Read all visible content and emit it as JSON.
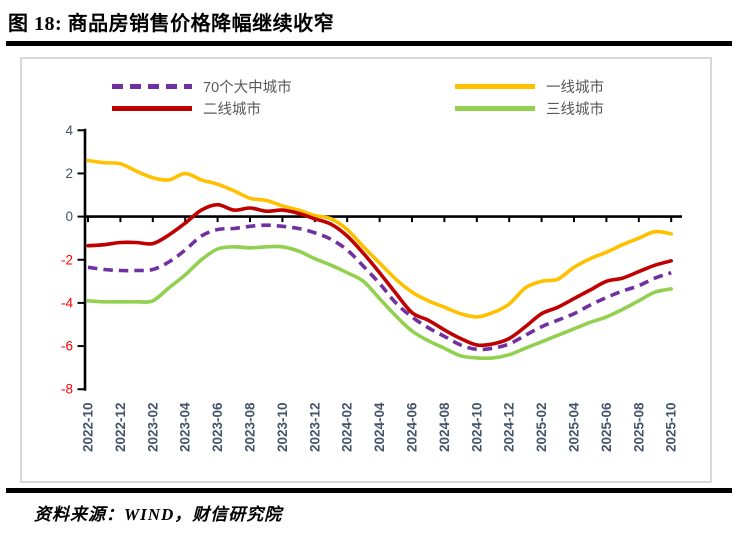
{
  "figure": {
    "number_title": "图 18: 商品房销售价格降幅继续收窄",
    "source": "资料来源：WIND，财信研究院"
  },
  "colors": {
    "panel_border": "#D9D9D9",
    "divider": "#000000",
    "legend_text": "#595959",
    "axis_label_positive": "#44546A",
    "axis_label_negative": "#FF0000",
    "axis_line": "#000000"
  },
  "chart_data": {
    "type": "line",
    "title": "商品房销售价格降幅继续收窄",
    "xlabel": "",
    "ylabel": "",
    "ylim": [
      -8,
      4
    ],
    "yticks": [
      4,
      2,
      0,
      -2,
      -4,
      -6,
      -8
    ],
    "grid": false,
    "legend_position": "top",
    "x": [
      "2022-10",
      "2022-11",
      "2022-12",
      "2023-01",
      "2023-02",
      "2023-03",
      "2023-04",
      "2023-05",
      "2023-06",
      "2023-07",
      "2023-08",
      "2023-09",
      "2023-10",
      "2023-11",
      "2023-12",
      "2024-01",
      "2024-02",
      "2024-03",
      "2024-04",
      "2024-05",
      "2024-06",
      "2024-07",
      "2024-08",
      "2024-09",
      "2024-10",
      "2024-11",
      "2024-12",
      "2025-01",
      "2025-02",
      "2025-03",
      "2025-04",
      "2025-05",
      "2025-06",
      "2025-07",
      "2025-08",
      "2025-09",
      "2025-10"
    ],
    "x_tick_labels": [
      "2022-10",
      "2022-12",
      "2023-02",
      "2023-04",
      "2023-06",
      "2023-08",
      "2023-10",
      "2023-12",
      "2024-02",
      "2024-04",
      "2024-06",
      "2024-08",
      "2024-10",
      "2024-12",
      "2025-02",
      "2025-04",
      "2025-06",
      "2025-08",
      "2025-10"
    ],
    "series": [
      {
        "name": "70个大中城市",
        "color": "#7030A0",
        "style": "dashed",
        "values": [
          -2.35,
          -2.45,
          -2.5,
          -2.5,
          -2.45,
          -2.1,
          -1.55,
          -0.9,
          -0.6,
          -0.55,
          -0.45,
          -0.4,
          -0.45,
          -0.55,
          -0.75,
          -1.05,
          -1.55,
          -2.3,
          -3.1,
          -4.0,
          -4.65,
          -5.15,
          -5.55,
          -5.95,
          -6.15,
          -6.1,
          -5.9,
          -5.5,
          -5.1,
          -4.8,
          -4.5,
          -4.1,
          -3.75,
          -3.45,
          -3.2,
          -2.85,
          -2.6
        ]
      },
      {
        "name": "一线城市",
        "color": "#FFC000",
        "style": "solid",
        "values": [
          2.6,
          2.5,
          2.45,
          2.1,
          1.8,
          1.7,
          2.0,
          1.7,
          1.5,
          1.2,
          0.85,
          0.75,
          0.5,
          0.3,
          0.05,
          -0.1,
          -0.6,
          -1.4,
          -2.15,
          -2.9,
          -3.5,
          -3.9,
          -4.2,
          -4.5,
          -4.65,
          -4.45,
          -4.05,
          -3.3,
          -3.0,
          -2.9,
          -2.35,
          -1.95,
          -1.65,
          -1.3,
          -1.0,
          -0.7,
          -0.8
        ]
      },
      {
        "name": "二线城市",
        "color": "#C00000",
        "style": "solid",
        "values": [
          -1.35,
          -1.3,
          -1.2,
          -1.2,
          -1.25,
          -0.85,
          -0.3,
          0.3,
          0.55,
          0.3,
          0.4,
          0.25,
          0.3,
          0.15,
          -0.1,
          -0.35,
          -0.9,
          -1.7,
          -2.6,
          -3.55,
          -4.45,
          -4.8,
          -5.25,
          -5.65,
          -5.95,
          -5.9,
          -5.65,
          -5.1,
          -4.5,
          -4.2,
          -3.8,
          -3.4,
          -3.0,
          -2.85,
          -2.55,
          -2.25,
          -2.05
        ]
      },
      {
        "name": "三线城市",
        "color": "#92D050",
        "style": "solid",
        "values": [
          -3.9,
          -3.95,
          -3.95,
          -3.95,
          -3.9,
          -3.3,
          -2.7,
          -2.0,
          -1.5,
          -1.4,
          -1.45,
          -1.4,
          -1.4,
          -1.6,
          -1.95,
          -2.25,
          -2.6,
          -3.0,
          -3.8,
          -4.6,
          -5.3,
          -5.75,
          -6.1,
          -6.45,
          -6.55,
          -6.55,
          -6.4,
          -6.1,
          -5.8,
          -5.5,
          -5.2,
          -4.9,
          -4.65,
          -4.3,
          -3.9,
          -3.5,
          -3.35
        ]
      }
    ]
  }
}
